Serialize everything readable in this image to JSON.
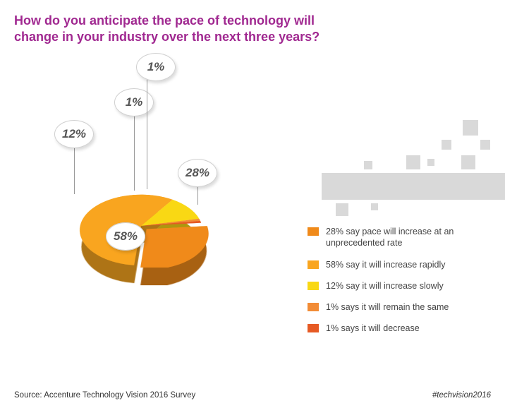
{
  "title_line1": "How do you anticipate the pace of technology will",
  "title_line2": "change in your industry over the next three years?",
  "title_color": "#a02890",
  "chart": {
    "type": "pie-3d",
    "background_color": "#ffffff",
    "slices": [
      {
        "label": "28%",
        "value": 28,
        "color": "#f08a1a",
        "legend": "28% say pace will increase at an unprecedented rate"
      },
      {
        "label": "58%",
        "value": 58,
        "color": "#f9a51f",
        "legend": "58% say it will increase rapidly"
      },
      {
        "label": "12%",
        "value": 12,
        "color": "#f9d814",
        "legend": "12% say it will increase slowly"
      },
      {
        "label": "1%",
        "value": 1,
        "color": "#f28c36",
        "legend": "1% says it will remain the same"
      },
      {
        "label": "1%",
        "value": 1,
        "color": "#e65a24",
        "legend": "1% says it will decrease"
      }
    ],
    "flag_bg": "#ffffff",
    "flag_text_color": "#555555",
    "legend_text_color": "#444444",
    "legend_fontsize": 12.5,
    "title_fontsize": 18,
    "deco_square_color": "#d9d9d9"
  },
  "source": "Source: Accenture Technology Vision 2016 Survey",
  "hashtag": "#techvision2016"
}
